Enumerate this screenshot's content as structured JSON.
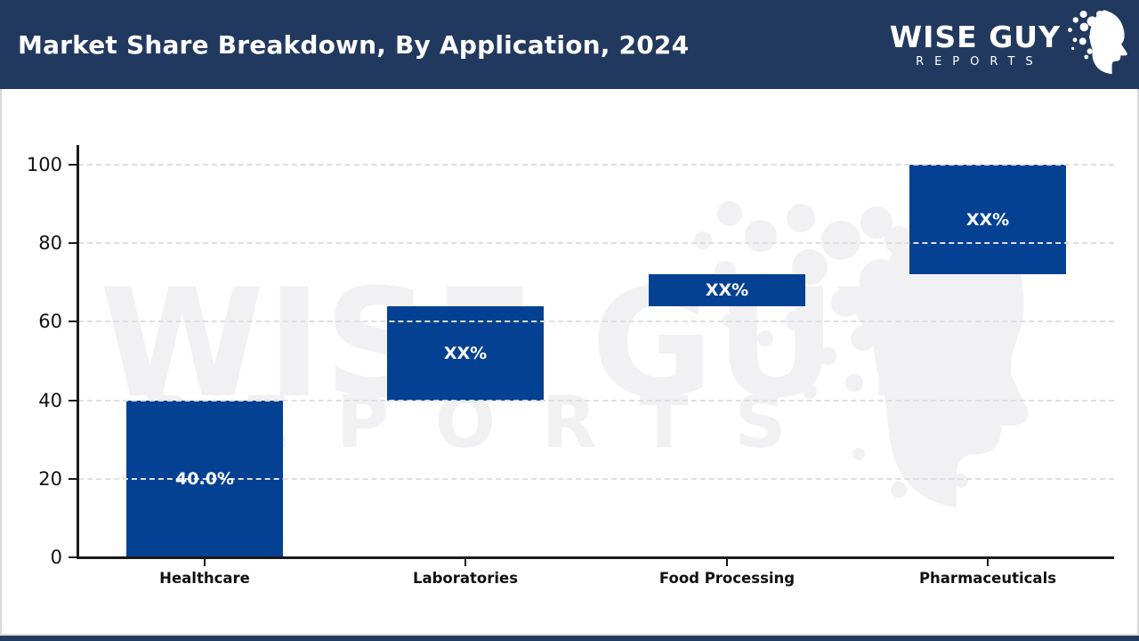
{
  "header": {
    "title": "Market Share Breakdown, By Application, 2024",
    "logo": {
      "line1": "WISE GUY",
      "line2": "REPORTS"
    }
  },
  "watermark": {
    "line1": "WISE GUY",
    "line2": "REPORTS"
  },
  "chart_data": {
    "type": "bar",
    "subtype": "waterfall",
    "title": "Market Share Breakdown, By Application, 2024",
    "categories": [
      "Healthcare",
      "Laboratories",
      "Food Processing",
      "Pharmaceuticals"
    ],
    "series": [
      {
        "name": "Market Share",
        "segments": [
          {
            "category": "Healthcare",
            "start": 0,
            "end": 40,
            "label": "40.0%"
          },
          {
            "category": "Laboratories",
            "start": 40,
            "end": 64,
            "label": "XX%"
          },
          {
            "category": "Food Processing",
            "start": 64,
            "end": 72,
            "label": "XX%"
          },
          {
            "category": "Pharmaceuticals",
            "start": 72,
            "end": 100,
            "label": "XX%"
          }
        ]
      }
    ],
    "yticks": [
      0,
      20,
      40,
      60,
      80,
      100
    ],
    "ylim": [
      0,
      105
    ],
    "xlabel": "",
    "ylabel": "",
    "grid": "horizontal dashed",
    "legend": "none",
    "colors": {
      "bar": "#054192",
      "bar_label": "#ffffff",
      "header_bar": "#22395f",
      "axis": "#1a1a1a",
      "gridline": "#dfdfdf",
      "watermark": "#f1f1f3"
    }
  }
}
